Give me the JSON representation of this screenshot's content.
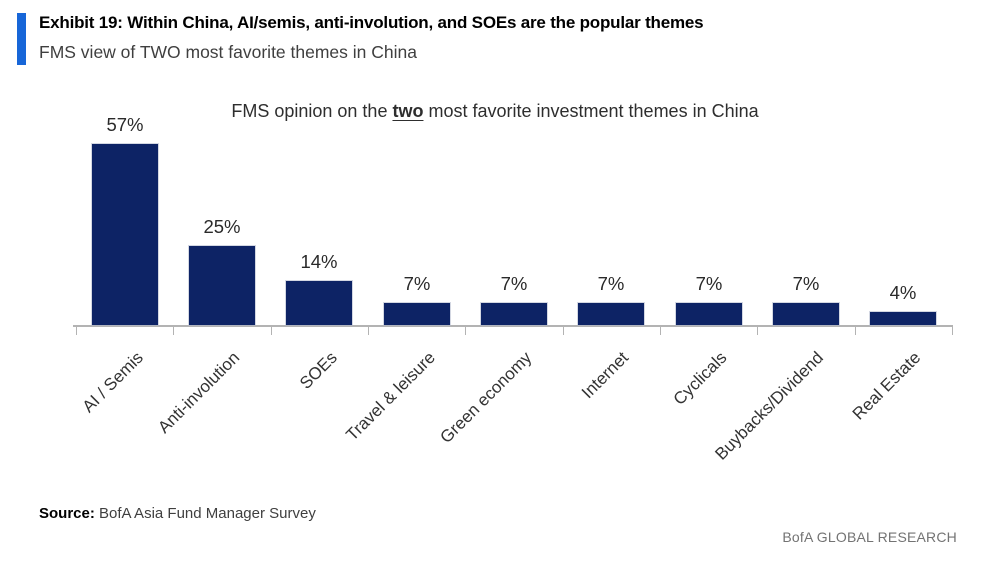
{
  "theme": {
    "accent_blue": "#1766D8",
    "bar_navy": "#0D2365",
    "axis_gray": "#B3B3B3",
    "brand_gray": "#737373"
  },
  "header": {
    "exhibit_title": "Exhibit 19: Within China, AI/semis, anti-involution, and SOEs are the popular themes",
    "subtitle": "FMS view of TWO most favorite themes in China"
  },
  "chart_data": {
    "type": "bar",
    "title": "FMS opinion on the two most favorite investment themes in China",
    "title_parts": {
      "pre": "FMS opinion on the ",
      "emphasis": "two",
      "post": " most favorite investment themes in China"
    },
    "categories": [
      "AI / Semis",
      "Anti-involution",
      "SOEs",
      "Travel & leisure",
      "Green economy",
      "Internet",
      "Cyclicals",
      "Buybacks/Dividend",
      "Real Estate"
    ],
    "values": [
      57,
      25,
      14,
      7,
      7,
      7,
      7,
      7,
      4
    ],
    "value_labels": [
      "57%",
      "25%",
      "14%",
      "7%",
      "7%",
      "7%",
      "7%",
      "7%",
      "4%"
    ],
    "unit": "%",
    "xlabel": "",
    "ylabel": "",
    "ylim": [
      0,
      60
    ],
    "grid": false,
    "legend": false,
    "bar_color": "#0D2365"
  },
  "footer": {
    "source_label": "Source:",
    "source_text": " BofA Asia Fund Manager Survey",
    "brand": "BofA GLOBAL RESEARCH"
  }
}
